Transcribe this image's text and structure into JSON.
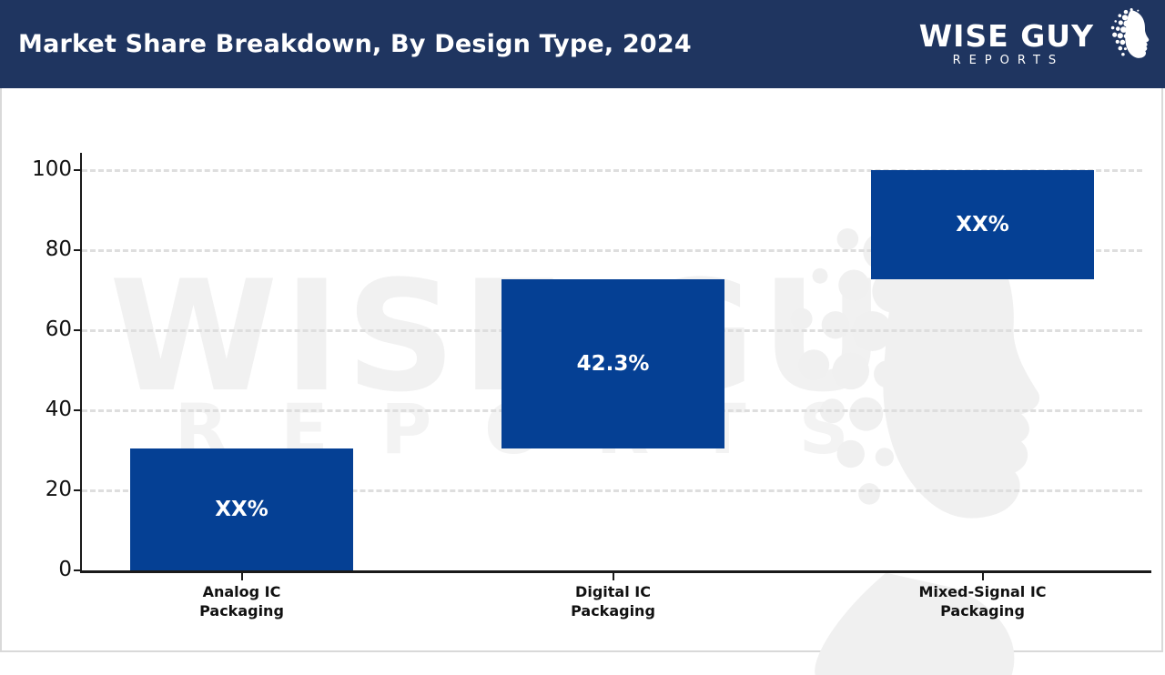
{
  "header": {
    "title": "Market Share Breakdown, By Design Type, 2024",
    "brand": {
      "line1": "WISE GUY",
      "line2": "REPORTS"
    }
  },
  "watermark": {
    "line1": "WISE GUY",
    "line2": "REPORTS"
  },
  "colors": {
    "header_bg": "#1f3560",
    "header_text": "#ffffff",
    "bar_blue": "#054094",
    "bar_label": "#ffffff",
    "grid_line": "#dedede",
    "axis_line": "#1a1a1a",
    "watermark_gray": "#f0f0f0",
    "card_border": "#d9d9d9"
  },
  "chart_data": {
    "type": "bar",
    "subtype": "floating-waterfall",
    "title": "Market Share Breakdown, By Design Type, 2024",
    "categories": [
      [
        "Analog IC",
        "Packaging"
      ],
      [
        "Digital IC",
        "Packaging"
      ],
      [
        "Mixed-Signal IC",
        "Packaging"
      ]
    ],
    "bars": [
      {
        "category": "Analog IC Packaging",
        "start": 0,
        "end": 30.4,
        "value_pct": 30.4,
        "display_label": "XX%"
      },
      {
        "category": "Digital IC Packaging",
        "start": 30.4,
        "end": 72.7,
        "value_pct": 42.3,
        "display_label": "42.3%"
      },
      {
        "category": "Mixed-Signal IC Packaging",
        "start": 72.7,
        "end": 100,
        "value_pct": 27.3,
        "display_label": "XX%"
      }
    ],
    "ylim": [
      0,
      100
    ],
    "yticks": [
      0,
      20,
      40,
      60,
      80,
      100
    ],
    "xlabel": "",
    "ylabel": "",
    "grid": "horizontal-dashed",
    "legend": "none"
  }
}
